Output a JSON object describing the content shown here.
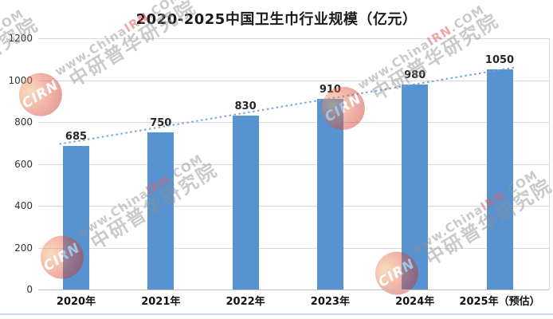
{
  "title": "2020-2025中国卫生巾行业规模（亿元）",
  "chart_data": {
    "type": "bar",
    "title": "2020-2025中国卫生巾行业规模（亿元）",
    "categories": [
      "2020年",
      "2021年",
      "2022年",
      "2023年",
      "2024年",
      "2025年（预估）"
    ],
    "values": [
      685,
      750,
      830,
      910,
      980,
      1050
    ],
    "xlabel": "",
    "ylabel": "",
    "ylim": [
      0,
      1200
    ],
    "yticks": [
      0,
      200,
      400,
      600,
      800,
      1000,
      1200
    ],
    "grid": true,
    "legend": "none",
    "bar_color": "#5793d0",
    "gridline_color": "#d9d9d9",
    "trendline": {
      "type": "linear",
      "style": "dotted",
      "color": "#76a3d8"
    }
  },
  "watermark": {
    "logo_text": "CIRN",
    "line1_prefix": "www.China",
    "line1_highlight": "IRN",
    "line1_suffix": ".COM",
    "line2": "中研普华研究院"
  }
}
